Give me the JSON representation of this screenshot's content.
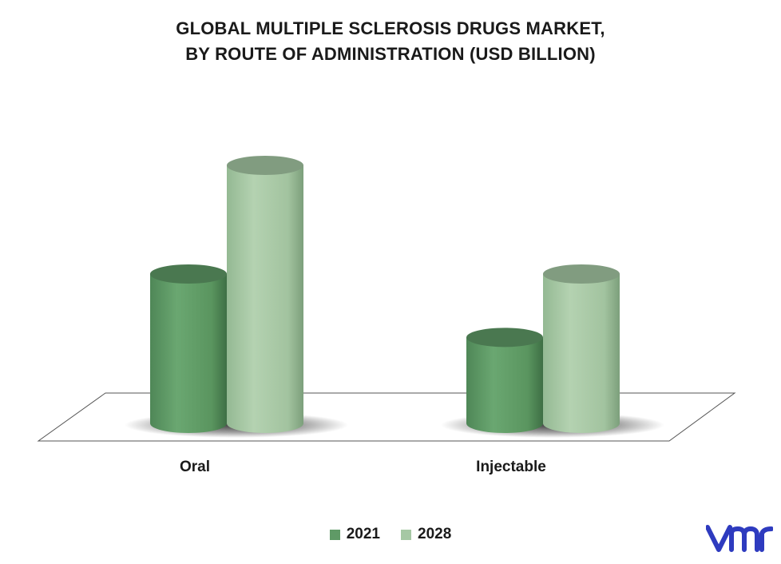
{
  "chart_data": {
    "type": "bar",
    "title": [
      "GLOBAL MULTIPLE SCLEROSIS DRUGS MARKET,",
      "BY ROUTE OF ADMINISTRATION (USD BILLION)"
    ],
    "categories": [
      "Oral",
      "Injectable"
    ],
    "series": [
      {
        "name": "2021",
        "values": [
          16.5,
          9.5
        ],
        "color": "#5f9a66"
      },
      {
        "name": "2028",
        "values": [
          28.5,
          16.5
        ],
        "color": "#a6c8a4"
      }
    ],
    "ylim": [
      0,
      30
    ],
    "grid": false,
    "legend": "bottom"
  },
  "logo": {
    "icon": "vmr-logo-icon",
    "color": "#2e3bbf"
  }
}
